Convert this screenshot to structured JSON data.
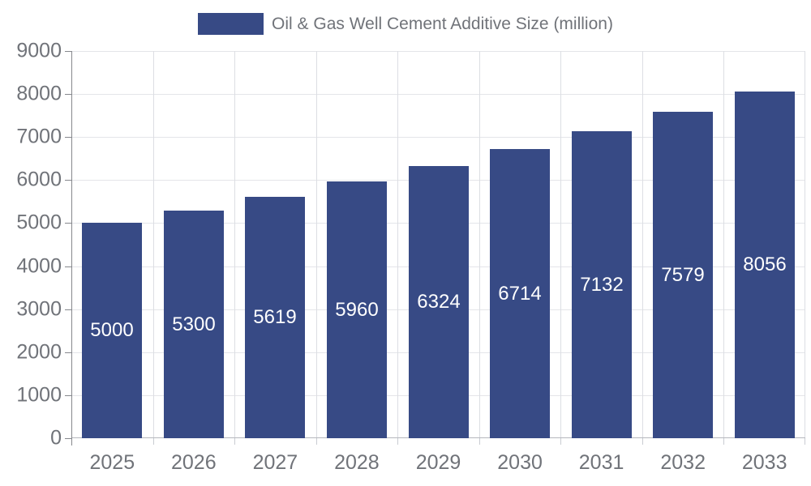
{
  "legend": {
    "label": "Oil & Gas Well Cement Additive Size (million)"
  },
  "chart_data": {
    "type": "bar",
    "title": "Oil & Gas Well Cement Additive Size (million)",
    "series_name": "Oil & Gas Well Cement Additive Size (million)",
    "categories": [
      "2025",
      "2026",
      "2027",
      "2028",
      "2029",
      "2030",
      "2031",
      "2032",
      "2033"
    ],
    "values": [
      5000,
      5300,
      5619,
      5960,
      6324,
      6714,
      7132,
      7579,
      8056
    ],
    "value_labels": [
      "5000",
      "5300",
      "5619",
      "5960",
      "6324",
      "6714",
      "7132",
      "7579",
      "8056"
    ],
    "xlabel": "",
    "ylabel": "",
    "ylim": [
      0,
      9000
    ],
    "ytick_step": 1000,
    "ytick_labels": [
      "0",
      "1000",
      "2000",
      "3000",
      "4000",
      "5000",
      "6000",
      "7000",
      "8000",
      "9000"
    ],
    "legend_position": "top",
    "grid": true,
    "colors": {
      "bar": "#374a85",
      "grid_h": "#e4e5e9",
      "grid_v": "#dcdee3",
      "axis_baseline": "#b5b7bd",
      "yaxis_line": "#86888d",
      "xtick": "#c9ccd2",
      "tick_label": "#707379",
      "value_label": "#ffffff",
      "background": "#ffffff"
    }
  }
}
